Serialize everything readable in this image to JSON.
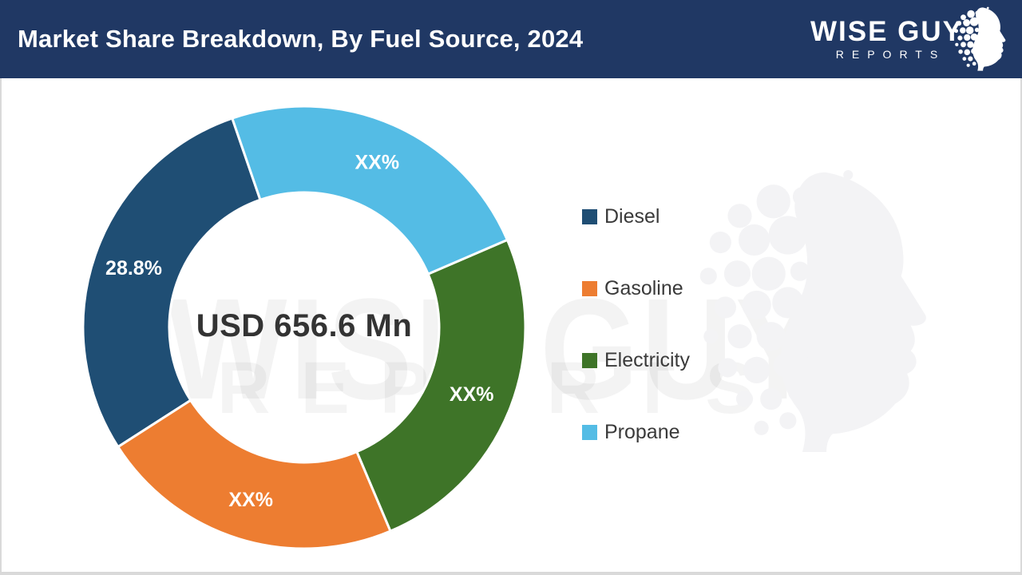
{
  "header": {
    "title": "Market Share Breakdown, By Fuel Source, 2024",
    "bg_color": "#203864",
    "logo": {
      "line1": "WISE GUY",
      "line2": "REPORTS"
    }
  },
  "chart_data": {
    "type": "pie",
    "subtype": "donut",
    "title": "Market Share Breakdown, By Fuel Source, 2024",
    "center_label": "USD 656.6 Mn",
    "start_angle_deg": 109,
    "direction": "counterclockwise",
    "inner_radius_ratio": 0.61,
    "legend_position": "right",
    "slices": [
      {
        "name": "Diesel",
        "value": 28.8,
        "label": "28.8%",
        "color": "#1F4E74"
      },
      {
        "name": "Gasoline",
        "value": 22.3,
        "label": "XX%",
        "color": "#ED7D31"
      },
      {
        "name": "Electricity",
        "value": 25.1,
        "label": "XX%",
        "color": "#3E7428"
      },
      {
        "name": "Propane",
        "value": 23.8,
        "label": "XX%",
        "color": "#54BCE5"
      }
    ]
  },
  "watermark": {
    "line1": "WISE GUY",
    "line2": "REPORTS"
  },
  "frame_color": "#d9d9d9"
}
